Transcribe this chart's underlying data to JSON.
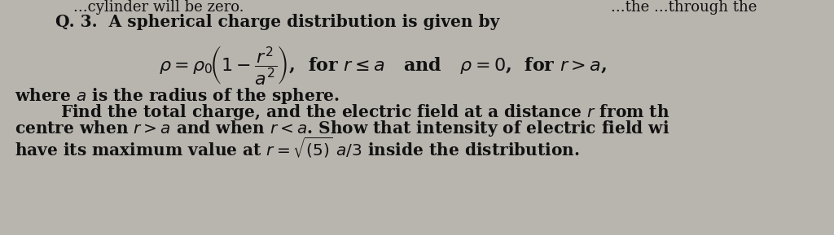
{
  "background_color": "#b8b4ae",
  "text_color": "#111111",
  "top_left": "...cylinder will be zero.",
  "top_right": "...the ...through the",
  "line1": "Q. 3.  A spherical charge distribution is given by",
  "formula": "$\\rho = \\rho_0\\!\\left(1 - \\dfrac{r^2}{a^2}\\right)$,  for $r \\leq a$   and   $\\rho = 0$,  for $r > a$,",
  "line3": "where $a$ is the radius of the sphere.",
  "line4": "        Find the total charge, and the electric field at a distance $r$ from th",
  "line5": "centre when $r > a$ and when $r < a$. Show that intensity of electric field wi",
  "line6": "have its maximum value at $r = \\sqrt{(5)}\\; a/3$ inside the distribution.",
  "font_size_top": 13,
  "font_size_main": 14.5,
  "font_size_formula": 16
}
